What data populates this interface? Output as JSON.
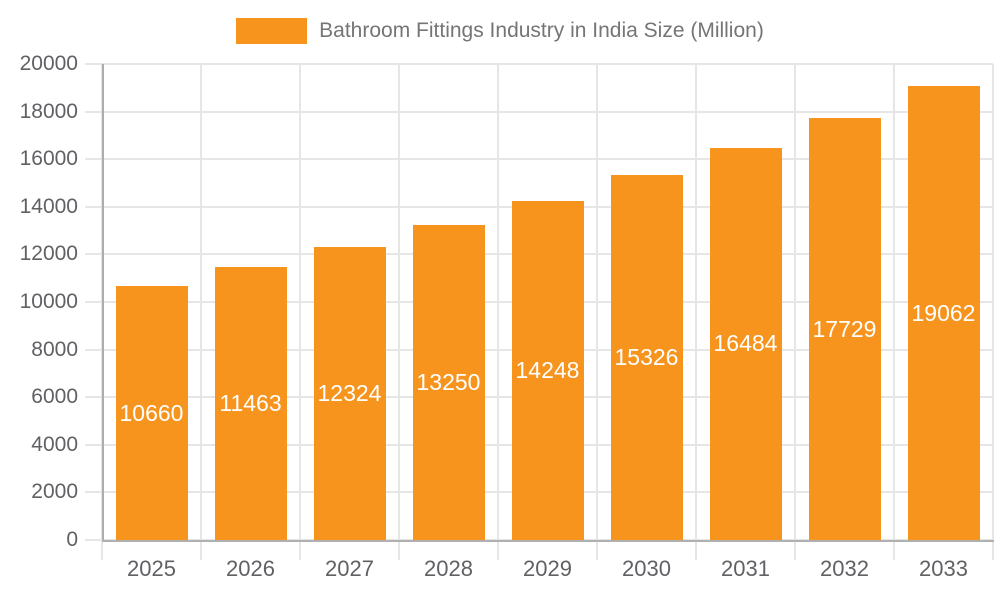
{
  "chart_data": {
    "type": "bar",
    "title": "Bathroom Fittings Industry in India Size (Million)",
    "categories": [
      "2025",
      "2026",
      "2027",
      "2028",
      "2029",
      "2030",
      "2031",
      "2032",
      "2033"
    ],
    "values": [
      10660,
      11463,
      12324,
      13250,
      14248,
      15326,
      16484,
      17729,
      19062
    ],
    "series": [
      {
        "name": "Bathroom Fittings Industry in India Size (Million)",
        "values": [
          10660,
          11463,
          12324,
          13250,
          14248,
          15326,
          16484,
          17729,
          19062
        ]
      }
    ],
    "xlabel": "",
    "ylabel": "",
    "ylim": [
      0,
      20000
    ],
    "yticks": [
      0,
      2000,
      4000,
      6000,
      8000,
      10000,
      12000,
      14000,
      16000,
      18000,
      20000
    ],
    "grid": true,
    "legend_position": "top-center",
    "value_label_position": "inside-center"
  },
  "legend": {
    "label": "Bathroom Fittings Industry in India Size (Million)"
  },
  "colors": {
    "bar": "#f7941e",
    "grid": "#e6e6e6",
    "axis": "#b0b0b0",
    "axis_label": "#606164",
    "legend_text": "#757575",
    "bar_label": "#ffffff",
    "background": "#ffffff"
  }
}
